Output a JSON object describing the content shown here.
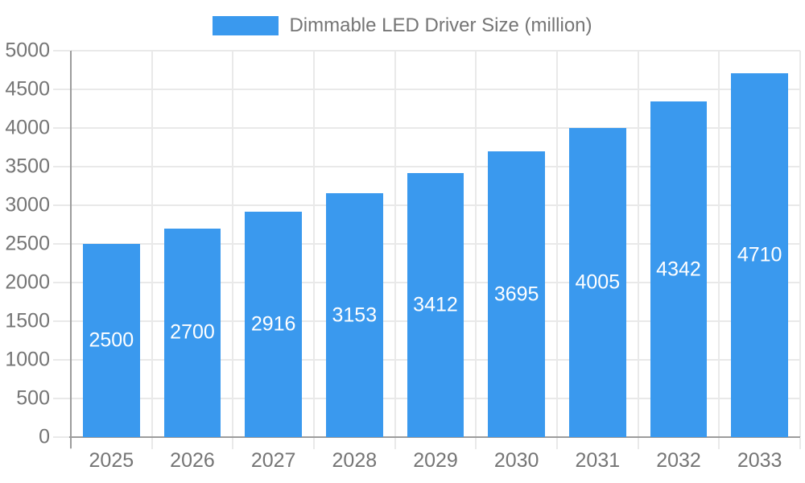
{
  "legend": {
    "label": "Dimmable LED Driver Size (million)"
  },
  "chart_data": {
    "type": "bar",
    "title": "Dimmable LED Driver Size (million)",
    "categories": [
      "2025",
      "2026",
      "2027",
      "2028",
      "2029",
      "2030",
      "2031",
      "2032",
      "2033"
    ],
    "values": [
      2500,
      2700,
      2916,
      3153,
      3412,
      3695,
      4005,
      4342,
      4710
    ],
    "series": [
      {
        "name": "Dimmable LED Driver Size (million)",
        "values": [
          2500,
          2700,
          2916,
          3153,
          3412,
          3695,
          4005,
          4342,
          4710
        ]
      }
    ],
    "xlabel": "",
    "ylabel": "",
    "ylim": [
      0,
      5000
    ],
    "ytick_step": 500,
    "grid": true,
    "legend_position": "top-center",
    "value_label_position": "inside-center"
  },
  "colors": {
    "bar": "#3A99EE",
    "bar_value_text": "#FFFFFF",
    "label_text": "#757575",
    "grid_line": "#E9E9E9",
    "axis_line": "#9C9C9C",
    "background": "#FFFFFF"
  }
}
